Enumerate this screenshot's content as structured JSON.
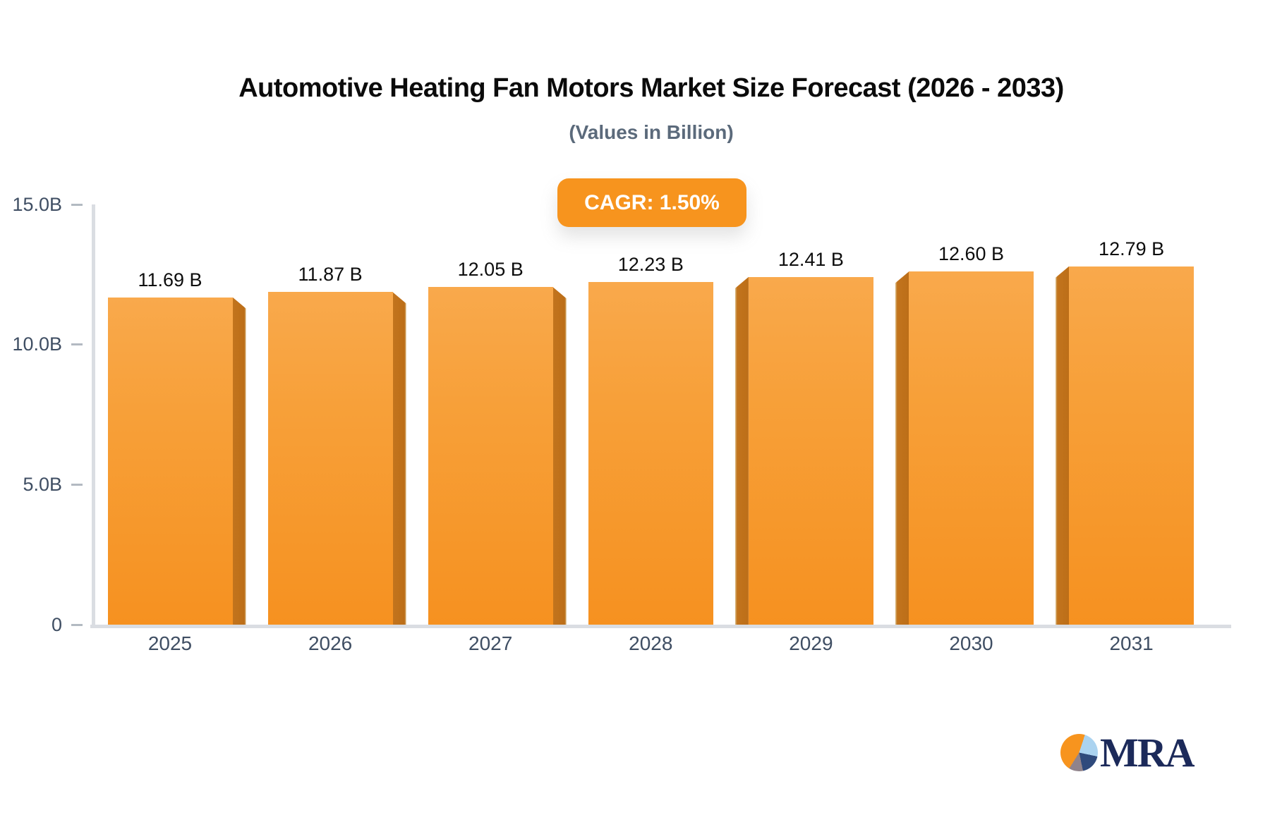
{
  "header": {
    "title": "Automotive Heating Fan Motors Market Size Forecast (2026 - 2033)",
    "subtitle": "(Values in Billion)"
  },
  "badge": {
    "label": "CAGR: 1.50%"
  },
  "chart_data": {
    "type": "bar",
    "categories": [
      "2025",
      "2026",
      "2027",
      "2028",
      "2029",
      "2030",
      "2031"
    ],
    "values": [
      11.69,
      11.87,
      12.05,
      12.23,
      12.41,
      12.6,
      12.79
    ],
    "bar_labels": [
      "11.69 B",
      "11.87 B",
      "12.05 B",
      "12.23 B",
      "12.41 B",
      "12.60 B",
      "12.79 B"
    ],
    "title": "Automotive Heating Fan Motors Market Size Forecast (2026 - 2033)",
    "subtitle": "(Values in Billion)",
    "xlabel": "",
    "ylabel": "",
    "ylim": [
      0,
      15
    ],
    "yticks": [
      {
        "label": "15.0B",
        "value": 15
      },
      {
        "label": "10.0B",
        "value": 10
      },
      {
        "label": "5.0B",
        "value": 5
      },
      {
        "label": "0",
        "value": 0
      }
    ],
    "grid": false,
    "legend": false,
    "annotation": "CAGR: 1.50%"
  },
  "colors": {
    "bar_face_top": "#F9A94C",
    "bar_face_bottom": "#F69120",
    "bar_side": "#BC6E18",
    "badge_bg": "#F7941E",
    "axis_line": "#DADDE2",
    "axis_text": "#3F4E63",
    "title_text": "#0B0B0B",
    "subtitle_text": "#5B6A7B",
    "logo_navy": "#1C2A5A"
  },
  "logo": {
    "text": "MRA"
  }
}
